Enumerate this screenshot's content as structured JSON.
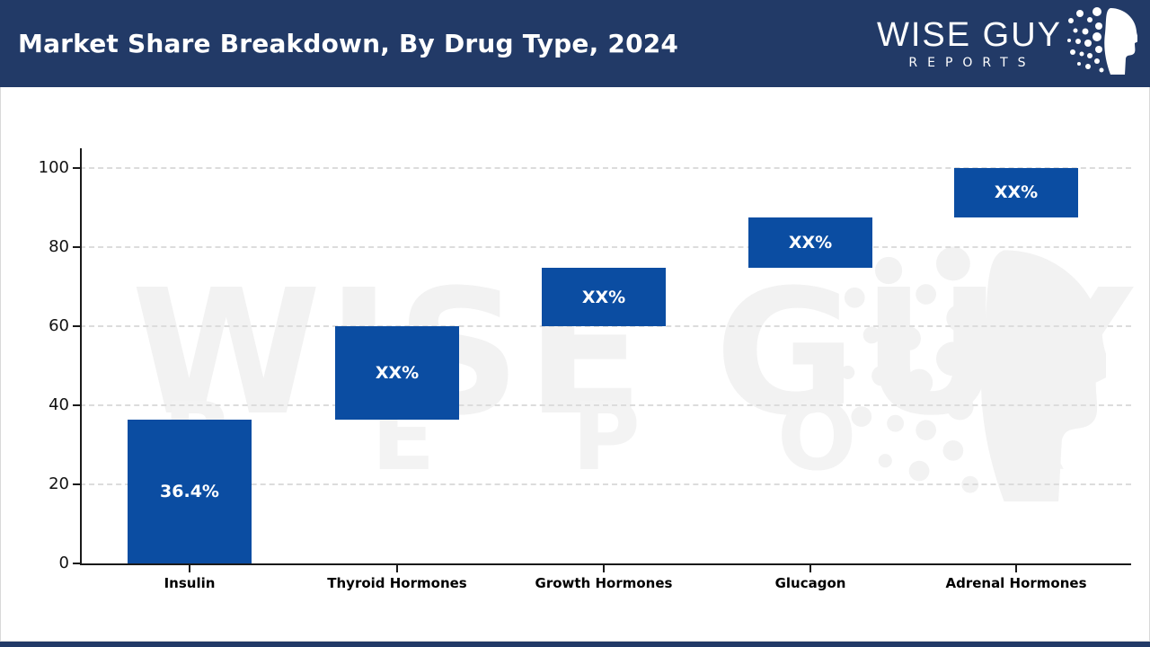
{
  "header": {
    "title": "Market Share Breakdown, By Drug Type, 2024",
    "logo": {
      "line1": "WISE GUY",
      "line2": "REPORTS"
    }
  },
  "watermark": {
    "line1": "WISE GUY",
    "line2": "R E P O R T S"
  },
  "colors": {
    "header_bg": "#223A67",
    "footer_bg": "#223A67",
    "bar": "#0B4DA2",
    "bar_label": "#FFFFFF",
    "gridline": "#DCDCDC",
    "axis": "#1A1A1A",
    "watermark": "#F2F2F2"
  },
  "chart_data": {
    "type": "bar",
    "subtype": "waterfall-floating-segments",
    "title": "Market Share Breakdown, By Drug Type, 2024",
    "categories": [
      "Insulin",
      "Thyroid Hormones",
      "Growth Hormones",
      "Glucagon",
      "Adrenal Hormones"
    ],
    "bars": [
      {
        "label": "Insulin",
        "display_value": "36.4%",
        "start": 0,
        "end": 36.4
      },
      {
        "label": "Thyroid Hormones",
        "display_value": "XX%",
        "start": 36.4,
        "end": 60.0
      },
      {
        "label": "Growth Hormones",
        "display_value": "XX%",
        "start": 60.0,
        "end": 74.7
      },
      {
        "label": "Glucagon",
        "display_value": "XX%",
        "start": 74.7,
        "end": 87.6
      },
      {
        "label": "Adrenal Hormones",
        "display_value": "XX%",
        "start": 87.6,
        "end": 100.0
      }
    ],
    "ylim": [
      0,
      100
    ],
    "yticks": [
      0,
      20,
      40,
      60,
      80,
      100
    ],
    "xlabel": "",
    "ylabel": "",
    "grid": "dashed-horizontal",
    "legend": "none"
  }
}
